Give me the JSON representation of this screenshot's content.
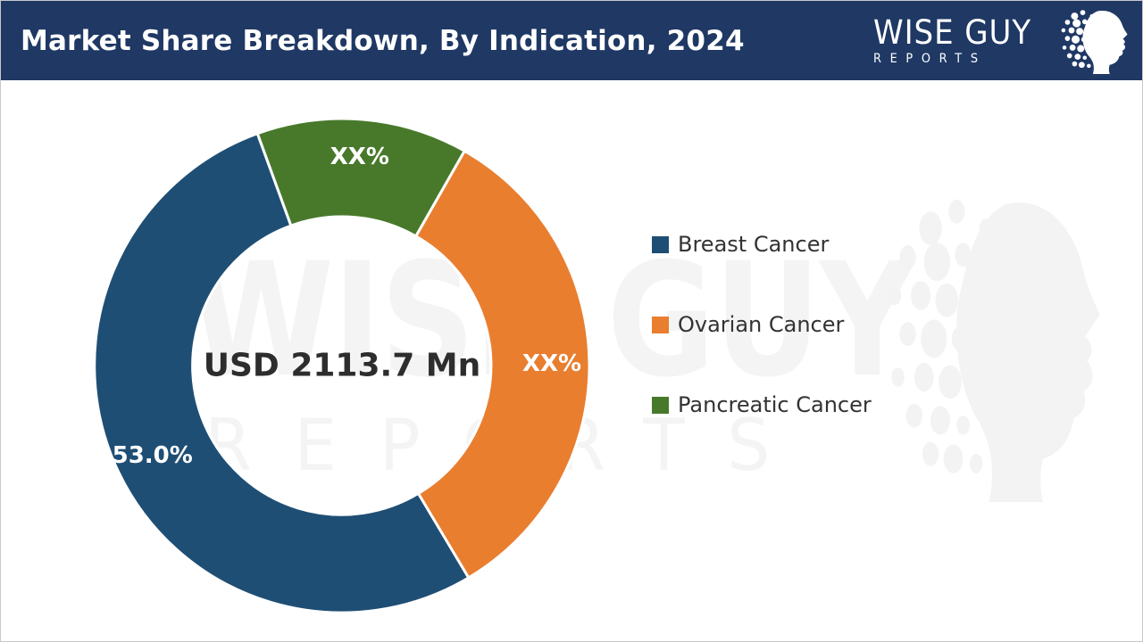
{
  "header": {
    "title": "Market Share Breakdown, By Indication, 2024",
    "bg_color": "#1f3864",
    "logo": {
      "title": "WISE GUY",
      "subtitle": "REPORTS"
    }
  },
  "chart_data": {
    "type": "pie",
    "subtype": "donut",
    "title": "Market Share Breakdown, By Indication, 2024",
    "center_label": "USD 2113.7 Mn",
    "start_angle_deg": 110,
    "direction": "counterclockwise",
    "legend_position": "right",
    "slices": [
      {
        "label": "Breast Cancer",
        "pct_label": "53.0%",
        "value_pct": 53.0,
        "color": "#1f4e74"
      },
      {
        "label": "Ovarian Cancer",
        "pct_label": "XX%",
        "value_pct": 33.2,
        "color": "#e97e2f"
      },
      {
        "label": "Pancreatic Cancer",
        "pct_label": "XX%",
        "value_pct": 13.8,
        "color": "#48792b"
      }
    ]
  },
  "watermark": {
    "title": "WISE GUY",
    "subtitle": "REPORTS"
  }
}
